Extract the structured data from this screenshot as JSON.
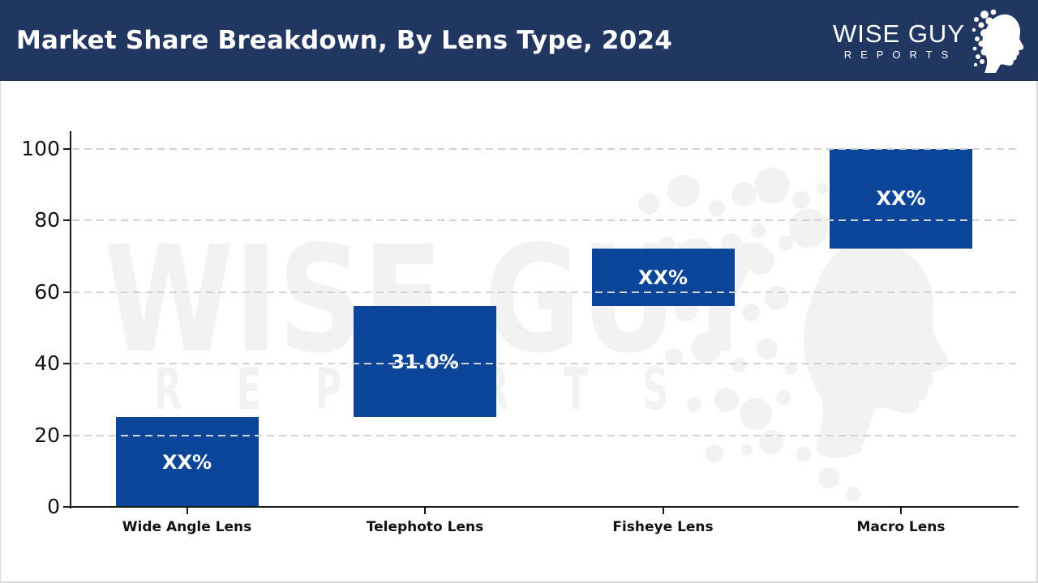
{
  "header": {
    "title": "Market Share Breakdown, By Lens Type, 2024",
    "logo": {
      "line1": "WISE GUY",
      "line2": "REPORTS",
      "icon": "dotted-face-profile-icon"
    },
    "bg_color": "#213761",
    "text_color": "#ffffff"
  },
  "watermark": {
    "line1": "WISE GUY",
    "line2": "R E P O R T S",
    "color": "#f2f2f2"
  },
  "chart_data": {
    "type": "bar",
    "subtype": "waterfall",
    "title": "Market Share Breakdown, By Lens Type, 2024",
    "categories": [
      "Wide Angle Lens",
      "Telephoto Lens",
      "Fisheye Lens",
      "Macro Lens"
    ],
    "segments": [
      {
        "category": "Wide Angle Lens",
        "start": 0,
        "end": 25,
        "label": "XX%"
      },
      {
        "category": "Telephoto Lens",
        "start": 25,
        "end": 56,
        "label": "31.0%"
      },
      {
        "category": "Fisheye Lens",
        "start": 56,
        "end": 72,
        "label": "XX%"
      },
      {
        "category": "Macro Lens",
        "start": 72,
        "end": 100,
        "label": "XX%"
      }
    ],
    "bar_labels": [
      "XX%",
      "31.0%",
      "XX%",
      "XX%"
    ],
    "yticks": [
      0,
      20,
      40,
      60,
      80,
      100
    ],
    "ylim": [
      0,
      100
    ],
    "xlabel": "",
    "ylabel": "",
    "grid": "dashed-horizontal-above-bars",
    "legend": "none",
    "bar_color": "#0a459a",
    "bar_label_color": "#ffffff",
    "axis_color": "#1a1a1a",
    "gridline_color": "#d2d2d2"
  }
}
